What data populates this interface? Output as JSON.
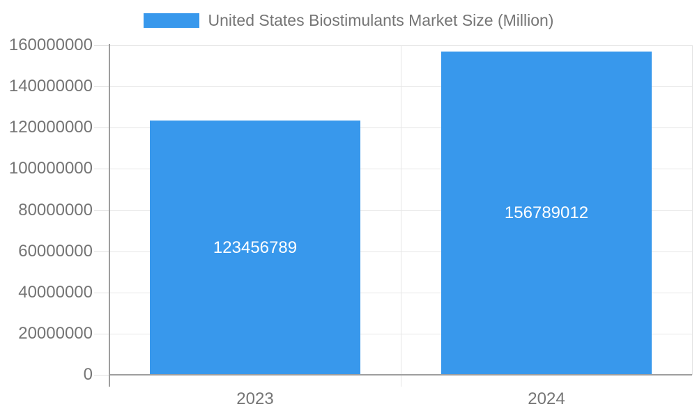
{
  "legend": {
    "position": "top"
  },
  "chart_data": {
    "type": "bar",
    "title": "United States Biostimulants Market Size (Million)",
    "categories": [
      "2023",
      "2024"
    ],
    "series": [
      {
        "name": "United States Biostimulants Market Size (Million)",
        "values": [
          123456789,
          156789012
        ]
      }
    ],
    "bar_value_labels": [
      "123456789",
      "156789012"
    ],
    "ylim": [
      0,
      160000000
    ],
    "yticks": [
      0,
      20000000,
      40000000,
      60000000,
      80000000,
      100000000,
      120000000,
      140000000,
      160000000
    ],
    "ytick_labels": [
      "0",
      "20000000",
      "40000000",
      "60000000",
      "80000000",
      "100000000",
      "120000000",
      "140000000",
      "160000000"
    ],
    "xlabel": "",
    "ylabel": "",
    "grid": true,
    "legend_position": "top",
    "colors": {
      "bar": "#3898ec",
      "bar_label": "#ffffff",
      "axis_text": "#757575",
      "axis_line": "#9e9e9e",
      "grid_line": "#e6e6e6",
      "tick_line": "#e0e0e0",
      "background": "#ffffff"
    }
  }
}
